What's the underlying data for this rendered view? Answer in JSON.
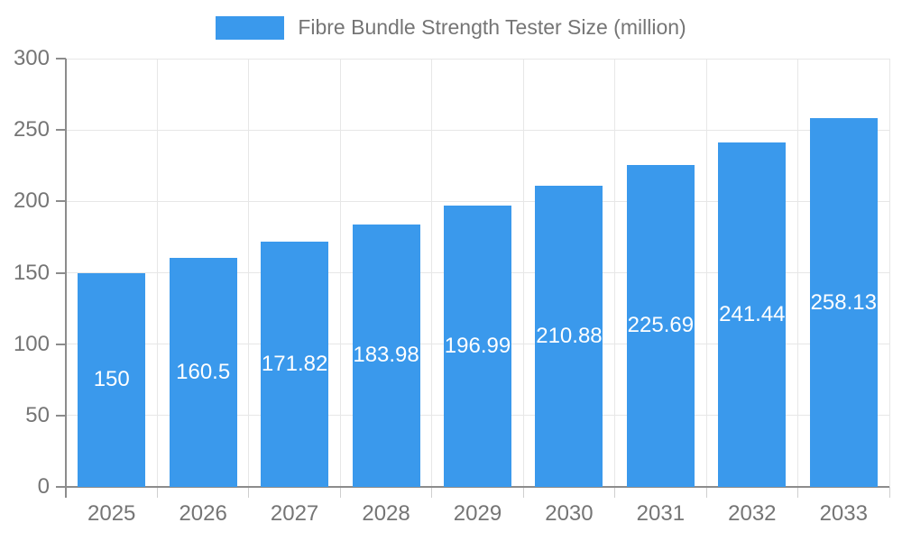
{
  "legend": {
    "label": "Fibre Bundle Strength Tester Size (million)"
  },
  "chart_data": {
    "type": "bar",
    "title": "",
    "categories": [
      "2025",
      "2026",
      "2027",
      "2028",
      "2029",
      "2030",
      "2031",
      "2032",
      "2033"
    ],
    "series": [
      {
        "name": "Fibre Bundle Strength Tester Size (million)",
        "values": [
          150,
          160.5,
          171.82,
          183.98,
          196.99,
          210.88,
          225.69,
          241.44,
          258.13
        ]
      }
    ],
    "data_labels": [
      "150",
      "160.5",
      "171.82",
      "183.98",
      "196.99",
      "210.88",
      "225.69",
      "241.44",
      "258.13"
    ],
    "xlabel": "",
    "ylabel": "",
    "ylim": [
      0,
      300
    ],
    "yticks": [
      0,
      50,
      100,
      150,
      200,
      250,
      300
    ],
    "grid": true,
    "legend_position": "top",
    "colors": {
      "bar": "#3A99EC",
      "axis_line": "#8C8C8C",
      "gridline": "#E7E7E7",
      "x_tick": "#CFCFCF",
      "tick_label_text": "#757575",
      "legend_text": "#757575",
      "data_label_text": "#FFFFFF",
      "background": "#FFFFFF"
    }
  }
}
